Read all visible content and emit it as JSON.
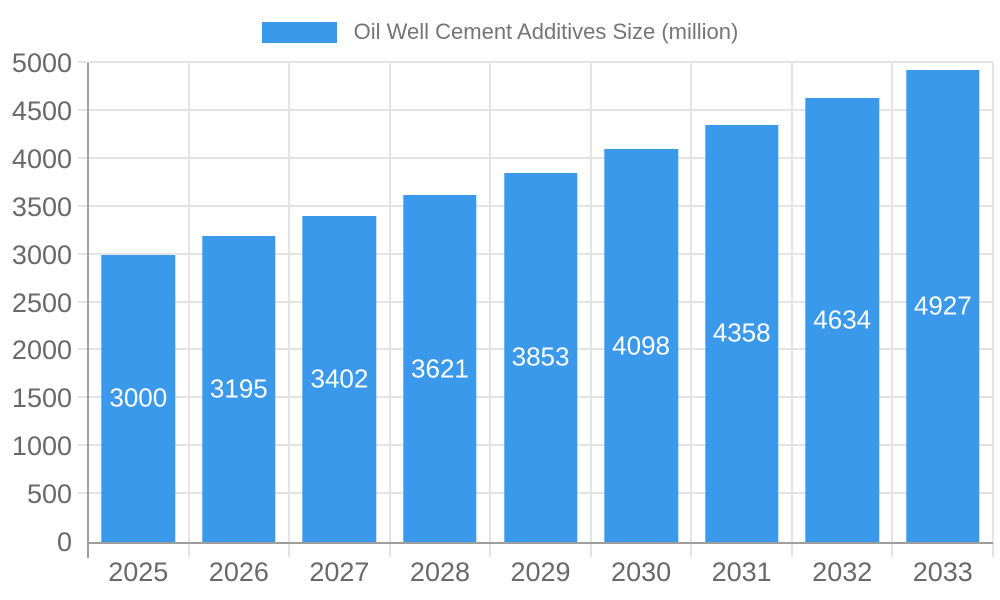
{
  "chart_data": {
    "type": "bar",
    "title": "Oil Well Cement Additives Size (million)",
    "categories": [
      "2025",
      "2026",
      "2027",
      "2028",
      "2029",
      "2030",
      "2031",
      "2032",
      "2033"
    ],
    "values": [
      3000,
      3195,
      3402,
      3621,
      3853,
      4098,
      4358,
      4634,
      4927
    ],
    "xlabel": "",
    "ylabel": "",
    "ylim": [
      0,
      5000
    ],
    "ytick_step": 500,
    "yticks": [
      0,
      500,
      1000,
      1500,
      2000,
      2500,
      3000,
      3500,
      4000,
      4500,
      5000
    ],
    "grid": true,
    "legend_position": "top-center",
    "value_label_position": "inside-center"
  },
  "legend": {
    "swatch_icon": "blue-rect-swatch"
  },
  "colors": {
    "bar": "#3B99EC",
    "grid": "#e4e4e4",
    "axis": "#9e9e9e",
    "tick_label": "#696969",
    "legend_label": "#757575",
    "value_label": "#ffffff",
    "background": "#ffffff"
  }
}
